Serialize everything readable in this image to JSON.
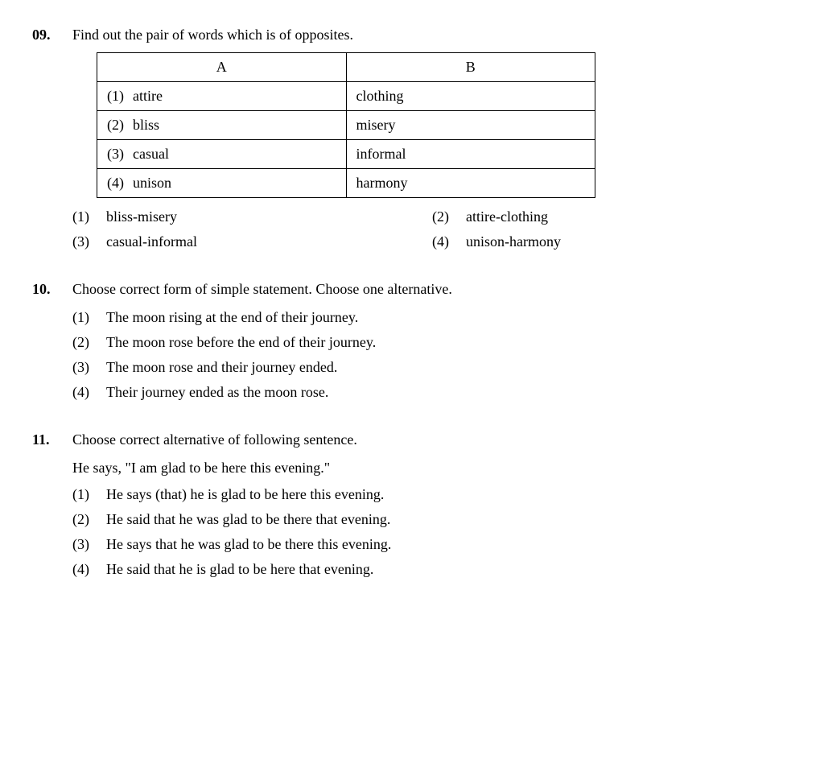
{
  "q9": {
    "number": "09.",
    "text": "Find out the pair of words which is of opposites.",
    "table": {
      "headA": "A",
      "headB": "B",
      "rows": [
        {
          "n": "(1)",
          "a": "attire",
          "b": "clothing"
        },
        {
          "n": "(2)",
          "a": "bliss",
          "b": "misery"
        },
        {
          "n": "(3)",
          "a": "casual",
          "b": "informal"
        },
        {
          "n": "(4)",
          "a": "unison",
          "b": "harmony"
        }
      ]
    },
    "options": [
      {
        "n": "(1)",
        "t": "bliss-misery"
      },
      {
        "n": "(2)",
        "t": "attire-clothing"
      },
      {
        "n": "(3)",
        "t": "casual-informal"
      },
      {
        "n": "(4)",
        "t": "unison-harmony"
      }
    ]
  },
  "q10": {
    "number": "10.",
    "text": "Choose correct form of simple statement. Choose one alternative.",
    "options": [
      {
        "n": "(1)",
        "t": "The moon rising at the end of their journey."
      },
      {
        "n": "(2)",
        "t": "The moon rose before the end of their journey."
      },
      {
        "n": "(3)",
        "t": "The moon rose and their journey ended."
      },
      {
        "n": "(4)",
        "t": "Their journey ended as the moon rose."
      }
    ]
  },
  "q11": {
    "number": "11.",
    "text": "Choose correct alternative of following sentence.",
    "stem": "He says, \"I am glad to be here this evening.\"",
    "options": [
      {
        "n": "(1)",
        "t": "He says (that) he is glad to be here this evening."
      },
      {
        "n": "(2)",
        "t": "He said that he was glad to be there that evening."
      },
      {
        "n": "(3)",
        "t": "He says that he was glad to be there this evening."
      },
      {
        "n": "(4)",
        "t": "He said that he is glad to be here that evening."
      }
    ]
  }
}
